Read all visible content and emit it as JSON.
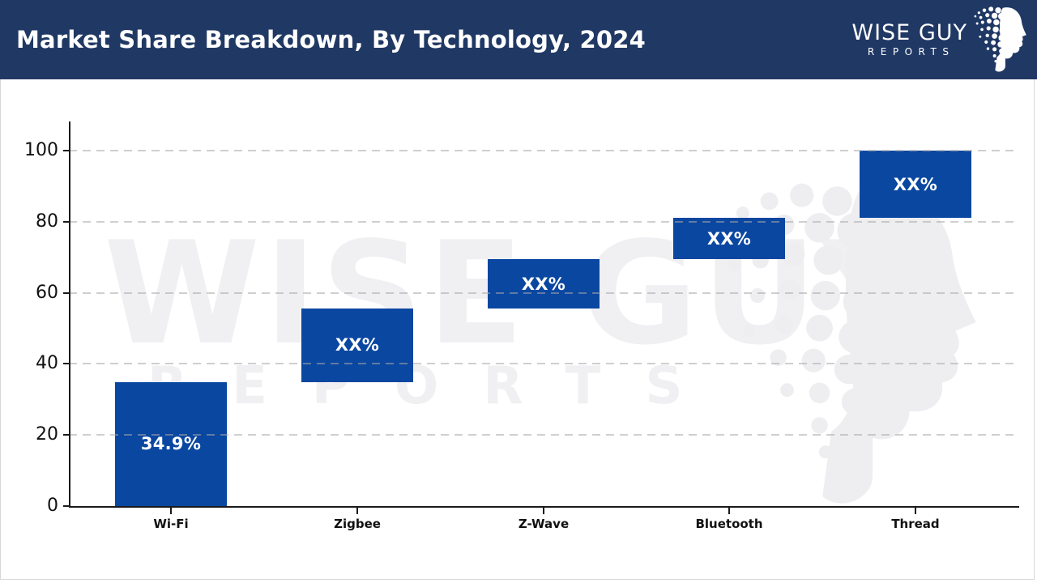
{
  "header": {
    "title": "Market Share Breakdown, By Technology, 2024",
    "logo": {
      "line1": "WISE GUY",
      "line2": "REPORTS"
    }
  },
  "watermark": {
    "line1": "WISE GUY",
    "line2": "REPORTS"
  },
  "colors": {
    "header_bg": "#203864",
    "bar": "#0a47a1",
    "bar_label": "#ffffff",
    "grid": "#c9c9c9",
    "axis": "#1a1a1a",
    "watermark": "#f0f0f3"
  },
  "chart_data": {
    "type": "bar",
    "subtype": "waterfall",
    "title": "Market Share Breakdown, By Technology, 2024",
    "categories": [
      "Wi-Fi",
      "Zigbee",
      "Z-Wave",
      "Bluetooth",
      "Thread"
    ],
    "segments": [
      {
        "category": "Wi-Fi",
        "start": 0,
        "end": 34.9,
        "label": "34.9%"
      },
      {
        "category": "Zigbee",
        "start": 34.9,
        "end": 55.6,
        "label": "XX%"
      },
      {
        "category": "Z-Wave",
        "start": 55.6,
        "end": 69.4,
        "label": "XX%"
      },
      {
        "category": "Bluetooth",
        "start": 69.4,
        "end": 81.0,
        "label": "XX%"
      },
      {
        "category": "Thread",
        "start": 81.0,
        "end": 100,
        "label": "XX%"
      }
    ],
    "xlabel": "",
    "ylabel": "",
    "ylim": [
      0,
      100
    ],
    "yticks": [
      0,
      20,
      40,
      60,
      80,
      100
    ],
    "grid": "horizontal-dashed",
    "legend": null
  }
}
